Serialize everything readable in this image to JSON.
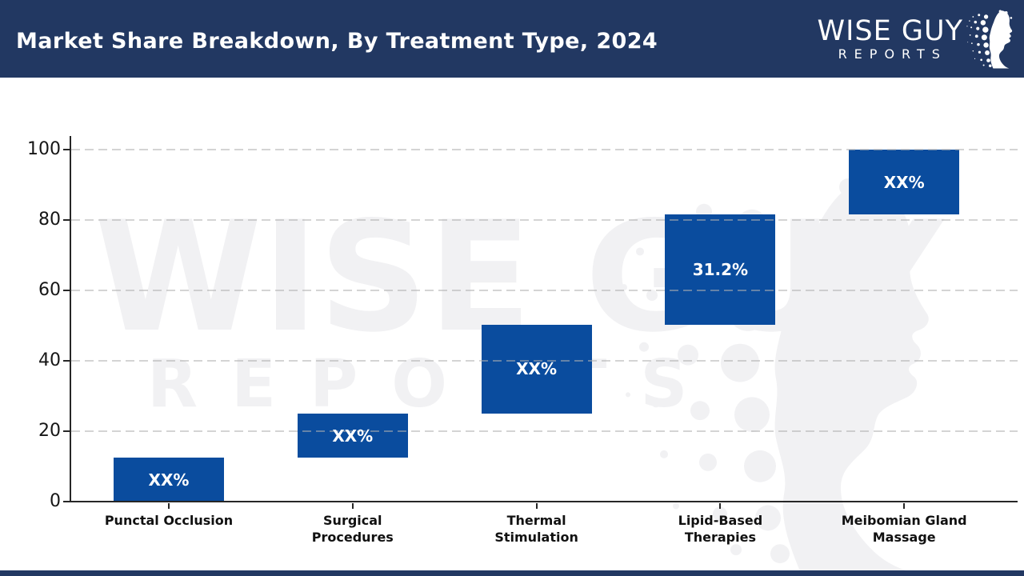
{
  "header": {
    "title": "Market Share Breakdown, By Treatment Type, 2024",
    "logo": {
      "wordmark": "WISE GUY",
      "subtext": "REPORTS"
    }
  },
  "watermark": {
    "wordmark": "WISE GUY",
    "subtext": "REPORTS"
  },
  "colors": {
    "header_bg": "#223862",
    "bar": "#0a4c9e",
    "bar_label": "#ffffff",
    "axis": "#262626",
    "grid": "#b0b0b0",
    "watermark": "#f1f1f3"
  },
  "chart_data": {
    "type": "bar",
    "subtype": "floating_segment_bars",
    "title": "Market Share Breakdown, By Treatment Type, 2024",
    "categories": [
      "Punctal Occlusion",
      "Surgical Procedures",
      "Thermal Stimulation",
      "Lipid-Based Therapies",
      "Meibomian Gland Massage"
    ],
    "categories_display": [
      [
        "Punctal Occlusion"
      ],
      [
        "Surgical",
        "Procedures"
      ],
      [
        "Thermal",
        "Stimulation"
      ],
      [
        "Lipid-Based",
        "Therapies"
      ],
      [
        "Meibomian Gland",
        "Massage"
      ]
    ],
    "series": [
      {
        "name": "Market share (%)",
        "segments": [
          {
            "start": 0,
            "end": 12.5
          },
          {
            "start": 12.5,
            "end": 25
          },
          {
            "start": 25,
            "end": 50.3
          },
          {
            "start": 50.3,
            "end": 81.5
          },
          {
            "start": 81.5,
            "end": 100
          }
        ]
      }
    ],
    "bar_labels": [
      "XX%",
      "XX%",
      "XX%",
      "31.2%",
      "XX%"
    ],
    "xlabel": "",
    "ylabel": "",
    "ylim": [
      0,
      100
    ],
    "yticks": [
      0,
      20,
      40,
      60,
      80,
      100
    ],
    "grid": {
      "horizontal": true,
      "style": "dashed"
    },
    "legend": "none"
  }
}
